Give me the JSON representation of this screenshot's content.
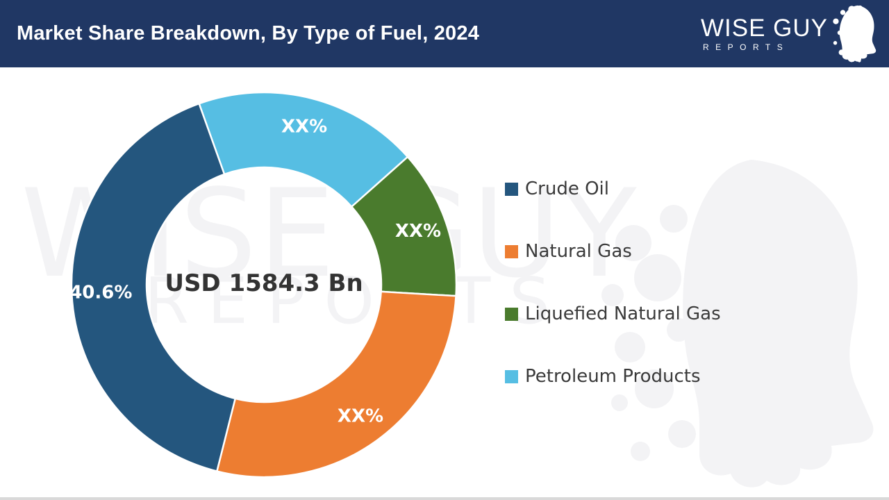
{
  "header": {
    "title": "Market Share Breakdown, By Type of Fuel, 2024",
    "brand": {
      "name_top": "WISE GUY",
      "name_bottom": "REPORTS"
    }
  },
  "chart_data": {
    "type": "donut",
    "title": "Market Share Breakdown, By Type of Fuel, 2024",
    "center_label": "USD 1584.3 Bn",
    "start_angle_deg_cw_from_top": -19.7,
    "direction": "clockwise",
    "inner_radius_ratio": 0.61,
    "slices": [
      {
        "name": "Petroleum Products",
        "pct": 18.9,
        "label": "XX%",
        "color": "#56BEE3"
      },
      {
        "name": "Liquefied Natural Gas",
        "pct": 12.5,
        "label": "XX%",
        "color": "#4A7B2D"
      },
      {
        "name": "Natural Gas",
        "pct": 28.0,
        "label": "XX%",
        "color": "#ED7D31"
      },
      {
        "name": "Crude Oil",
        "pct": 40.6,
        "label": "40.6%",
        "color": "#24567E"
      }
    ],
    "legend_position": "right"
  },
  "legend": {
    "items": [
      {
        "label": "Crude Oil",
        "color": "#24567E"
      },
      {
        "label": "Natural Gas",
        "color": "#ED7D31"
      },
      {
        "label": "Liquefied Natural Gas",
        "color": "#4A7B2D"
      },
      {
        "label": "Petroleum Products",
        "color": "#56BEE3"
      }
    ]
  },
  "watermark": {
    "line1": "WISE GUY",
    "line2": "REPORTS"
  },
  "colors": {
    "header_bg": "#203764",
    "center_text": "#333333",
    "legend_text": "#3A3A3A",
    "watermark": "#F3F3F5",
    "footer_strip": "#D9D9D9"
  }
}
